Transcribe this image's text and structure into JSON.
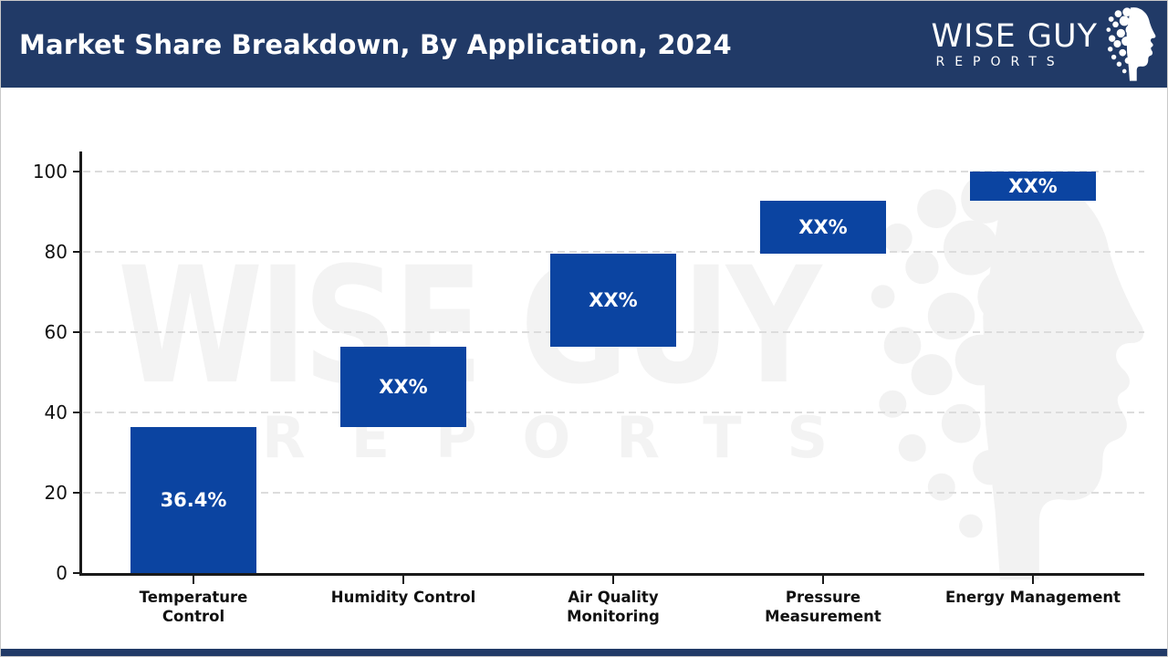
{
  "header": {
    "title": "Market Share Breakdown, By Application, 2024",
    "logo": {
      "line1": "WISE GUY",
      "line2": "REPORTS",
      "icon": "dotted-face-profile"
    }
  },
  "watermark": {
    "line1": "WISE GUY",
    "line2": "REPORTS"
  },
  "chart_data": {
    "type": "bar",
    "subtype": "waterfall",
    "title": "Market Share Breakdown, By Application, 2024",
    "categories": [
      "Temperature\nControl",
      "Humidity Control",
      "Air Quality\nMonitoring",
      "Pressure\nMeasurement",
      "Energy Management"
    ],
    "bars": [
      {
        "category": "Temperature\nControl",
        "start": 0,
        "end": 36.4,
        "label": "36.4%"
      },
      {
        "category": "Humidity Control",
        "start": 36.4,
        "end": 56.4,
        "label": "XX%"
      },
      {
        "category": "Air Quality\nMonitoring",
        "start": 56.4,
        "end": 79.5,
        "label": "XX%"
      },
      {
        "category": "Pressure\nMeasurement",
        "start": 79.5,
        "end": 92.7,
        "label": "XX%"
      },
      {
        "category": "Energy Management",
        "start": 92.7,
        "end": 100,
        "label": "XX%"
      }
    ],
    "ylim": [
      0,
      100
    ],
    "yticks": [
      0,
      20,
      40,
      60,
      80,
      100
    ],
    "xlabel": "",
    "ylabel": "",
    "grid": "horizontal-dashed",
    "legend": "none",
    "bar_color": "#0b44a1",
    "bar_label_color": "#ffffff"
  },
  "colors": {
    "header_bg": "#213a67",
    "footer_bg": "#213a67",
    "bar": "#0b44a1",
    "gridline": "#dcdcdc",
    "axis": "#1a1a1a",
    "tick_text": "#111111",
    "watermark": "#f3f3f3"
  }
}
